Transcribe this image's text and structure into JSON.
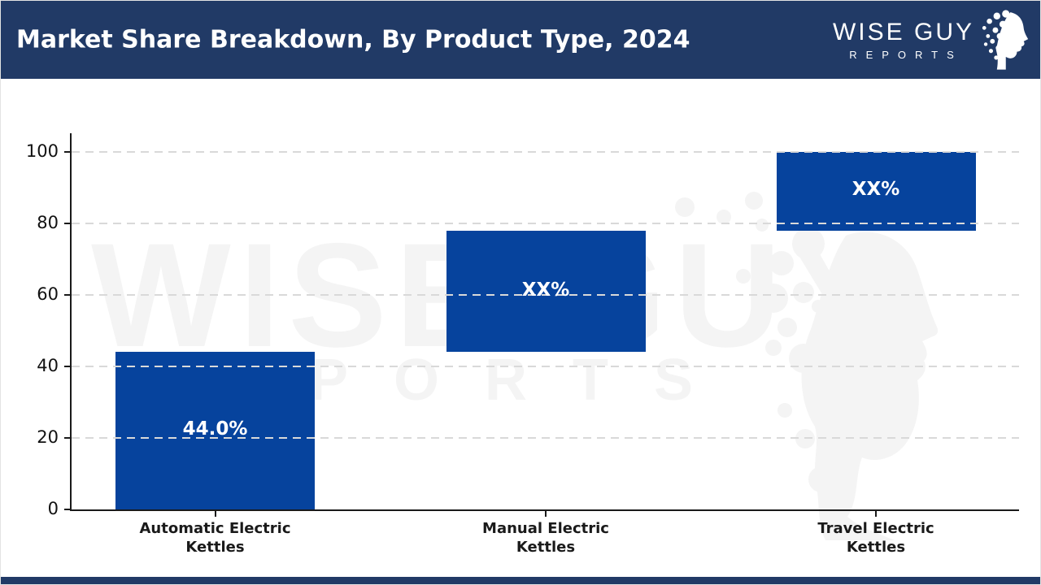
{
  "header": {
    "title": "Market Share Breakdown, By Product Type, 2024",
    "logo": {
      "line1": "WISE GUY",
      "line2": "REPORTS"
    }
  },
  "watermark": {
    "line1": "WISE GUY",
    "line2": "REPORTS"
  },
  "colors": {
    "header_bg": "#213A66",
    "footer_bg": "#213A66",
    "bar": "#06439D",
    "grid": "#d9d9d9",
    "axis": "#1a1a1a",
    "bar_label_text": "#ffffff",
    "watermark": "#f4f4f4"
  },
  "chart_data": {
    "type": "bar",
    "variant": "waterfall",
    "title": "Market Share Breakdown, By Product Type, 2024",
    "categories": [
      [
        "Automatic Electric",
        "Kettles"
      ],
      [
        "Manual Electric",
        "Kettles"
      ],
      [
        "Travel Electric",
        "Kettles"
      ]
    ],
    "series": [
      {
        "name": "Market share (%)",
        "base": [
          0,
          44,
          78
        ],
        "value": [
          44,
          34,
          22
        ],
        "top": [
          44,
          78,
          100
        ]
      }
    ],
    "bar_labels": [
      "44.0%",
      "XX%",
      "XX%"
    ],
    "ylim": [
      0,
      100
    ],
    "yticks": [
      0,
      20,
      40,
      60,
      80,
      100
    ],
    "grid": {
      "horizontal": true,
      "style": "dashed",
      "color": "#d9d9d9"
    },
    "legend": "none",
    "bar_color": "#06439D"
  }
}
